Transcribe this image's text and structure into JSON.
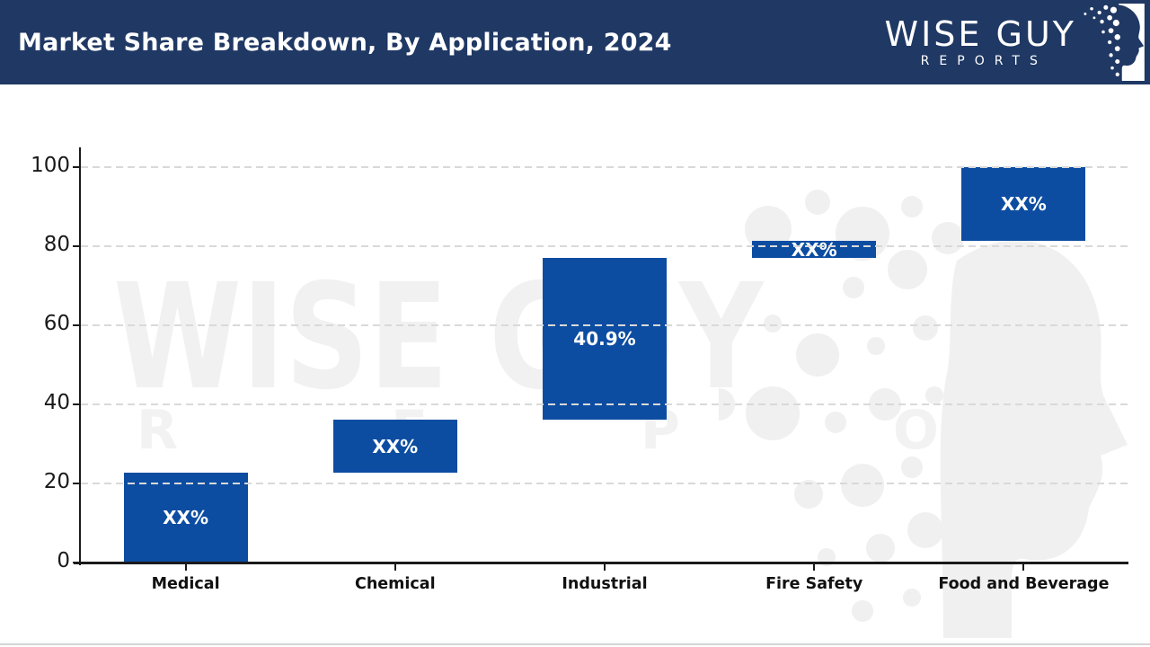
{
  "header": {
    "title": "Market Share Breakdown, By Application, 2024",
    "bg_color": "#1f3864",
    "logo_line1": "WISE GUY",
    "logo_line2": "REPORTS"
  },
  "watermark": {
    "line1": "WISE GUY",
    "line2": "R E P O R T S"
  },
  "chart_data": {
    "type": "bar",
    "subtype": "waterfall",
    "title": "Market Share Breakdown, By Application, 2024",
    "categories": [
      "Medical",
      "Chemical",
      "Industrial",
      "Fire Safety",
      "Food and Beverage"
    ],
    "segments": [
      {
        "category": "Medical",
        "start": 0,
        "end": 22.7,
        "label": "XX%"
      },
      {
        "category": "Chemical",
        "start": 22.7,
        "end": 36.0,
        "label": "XX%"
      },
      {
        "category": "Industrial",
        "start": 36.0,
        "end": 76.9,
        "label": "40.9%"
      },
      {
        "category": "Fire Safety",
        "start": 76.9,
        "end": 81.2,
        "label": "XX%"
      },
      {
        "category": "Food and Beverage",
        "start": 81.2,
        "end": 100,
        "label": "XX%"
      }
    ],
    "xlabel": "",
    "ylabel": "",
    "ylim": [
      0,
      105
    ],
    "yticks": [
      0,
      20,
      40,
      60,
      80,
      100
    ],
    "grid": "horizontal-dashed, drawn over bars",
    "legend": "none",
    "bar_color": "#0c4da2",
    "bar_label_color": "#ffffff"
  }
}
